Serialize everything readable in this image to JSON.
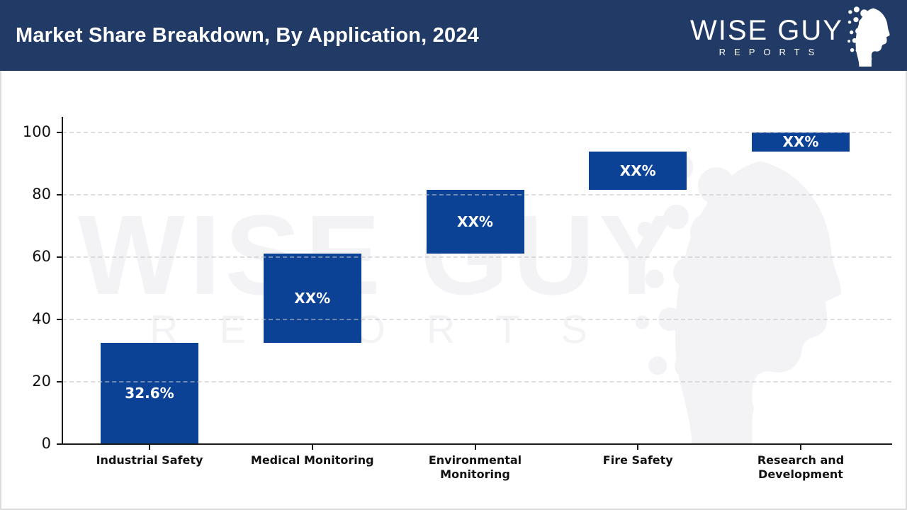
{
  "header": {
    "title": "Market Share Breakdown, By Application, 2024",
    "logo": {
      "line1": "WISE GUY",
      "line2": "REPORTS"
    }
  },
  "watermark": {
    "line1": "WISE GUY",
    "line2": "REPORTS"
  },
  "colors": {
    "header_bg": "#213a66",
    "bar": "#0b4296",
    "axis": "#1a1a1a",
    "grid": "#d9d9dc",
    "bar_label_text": "#ffffff",
    "tick_text": "#111111",
    "watermark": "#f3f3f6"
  },
  "chart_data": {
    "type": "bar",
    "subtype": "waterfall",
    "title": "Market Share Breakdown, By Application, 2024",
    "xlabel": "",
    "ylabel": "",
    "ylim": [
      0,
      100
    ],
    "yticks": [
      0,
      20,
      40,
      60,
      80,
      100
    ],
    "grid": "horizontal-dashed",
    "legend": "none",
    "bar_color": "#0b4296",
    "categories": [
      "Industrial Safety",
      "Medical Monitoring",
      "Environmental\nMonitoring",
      "Fire Safety",
      "Research and\nDevelopment"
    ],
    "segments": [
      {
        "category": "Industrial Safety",
        "start": 0,
        "end": 32.6,
        "label": "32.6%"
      },
      {
        "category": "Medical Monitoring",
        "start": 32.6,
        "end": 61.2,
        "label": "XX%"
      },
      {
        "category": "Environmental Monitoring",
        "start": 61.2,
        "end": 81.6,
        "label": "XX%"
      },
      {
        "category": "Fire Safety",
        "start": 81.6,
        "end": 93.9,
        "label": "XX%"
      },
      {
        "category": "Research and Development",
        "start": 93.9,
        "end": 100,
        "label": "XX%"
      }
    ]
  }
}
